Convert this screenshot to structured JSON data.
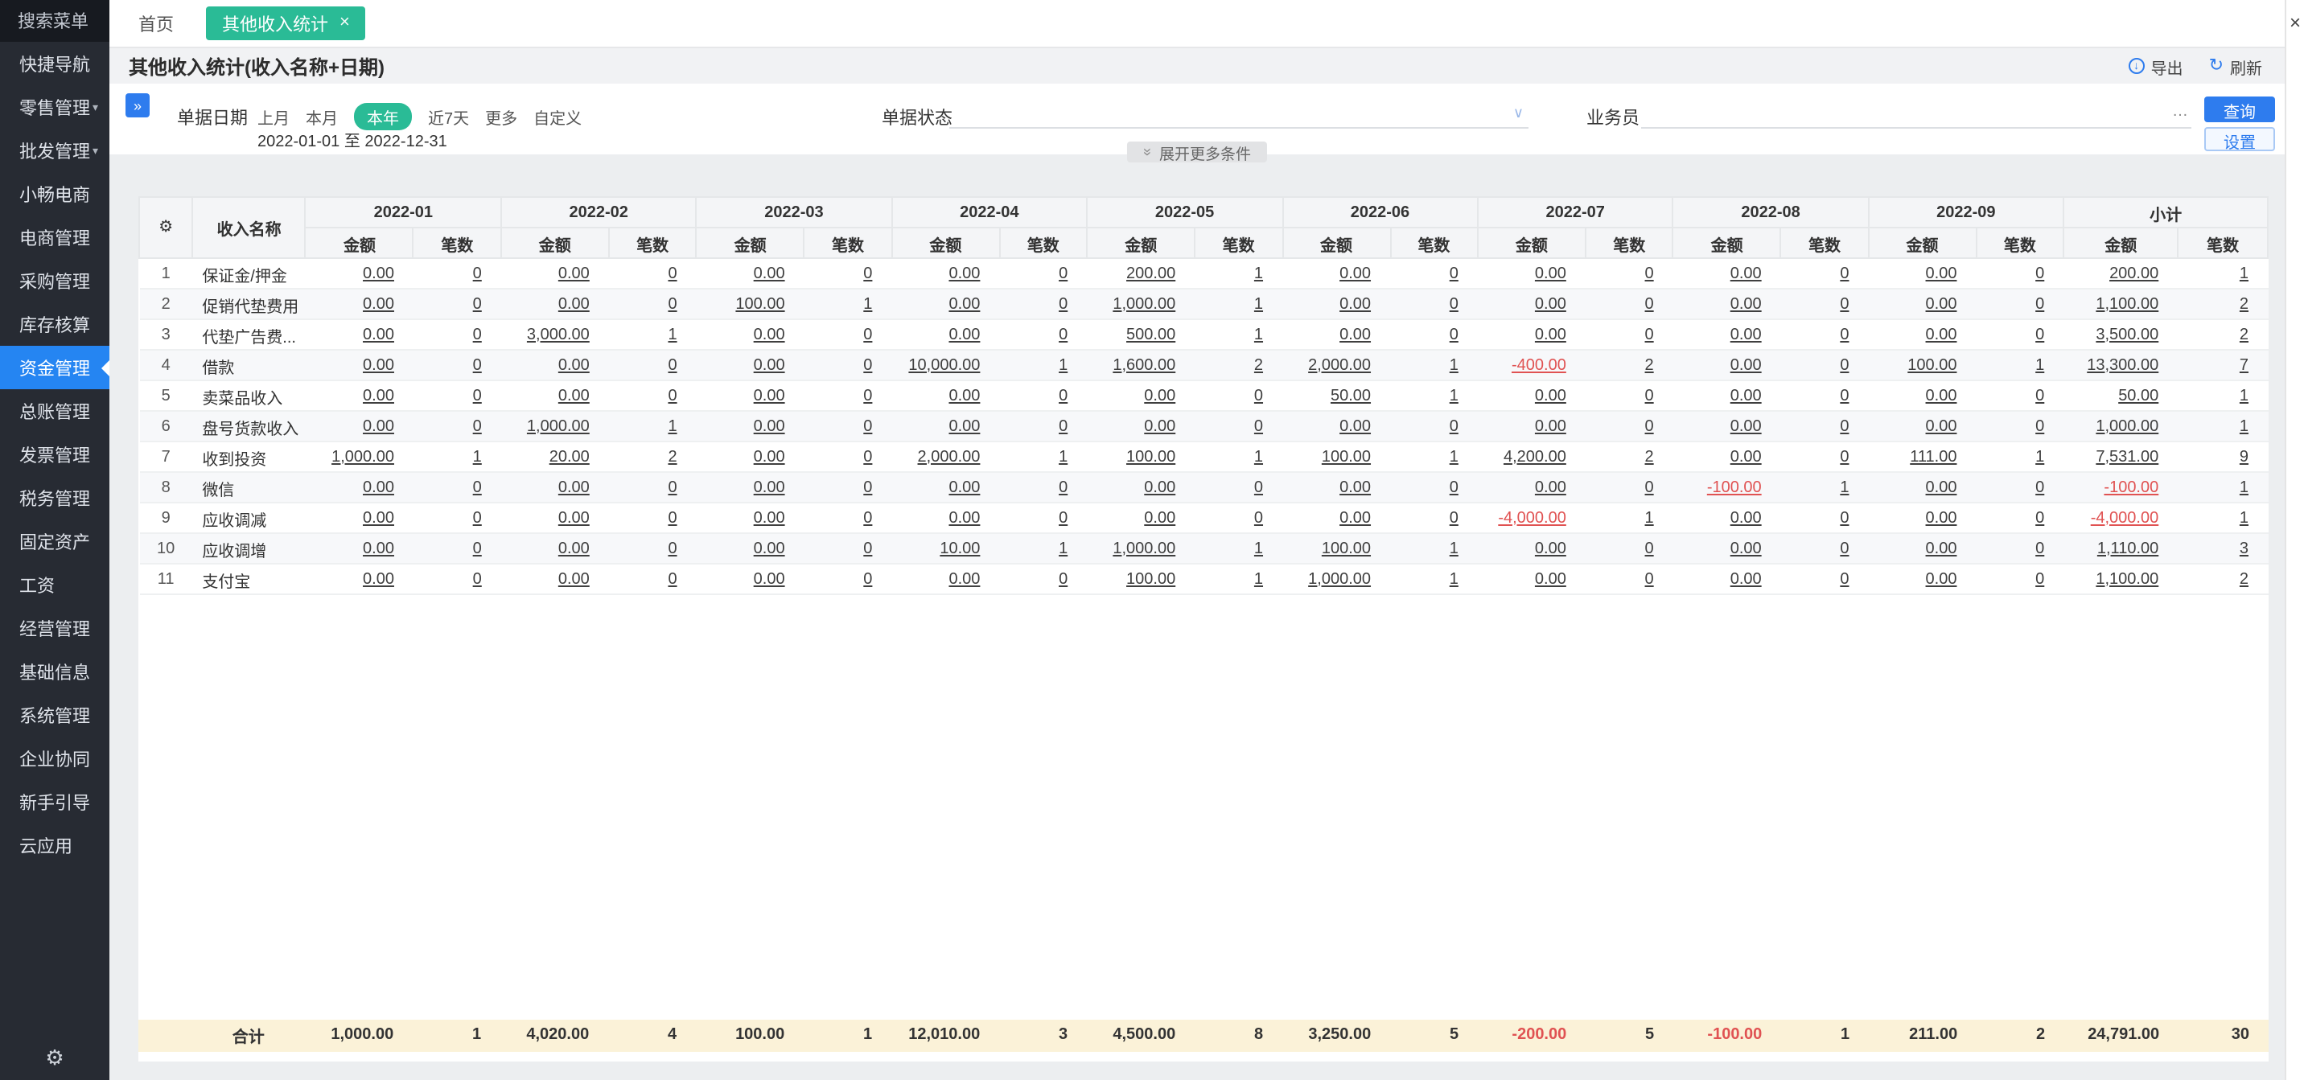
{
  "sidebar": {
    "search_label": "搜索菜单",
    "items": [
      {
        "label": "快捷导航"
      },
      {
        "label": "零售管理",
        "arrow": true
      },
      {
        "label": "批发管理",
        "arrow": true
      },
      {
        "label": "小畅电商"
      },
      {
        "label": "电商管理"
      },
      {
        "label": "采购管理"
      },
      {
        "label": "库存核算"
      },
      {
        "label": "资金管理",
        "active": true
      },
      {
        "label": "总账管理"
      },
      {
        "label": "发票管理"
      },
      {
        "label": "税务管理"
      },
      {
        "label": "固定资产"
      },
      {
        "label": "工资"
      },
      {
        "label": "经营管理"
      },
      {
        "label": "基础信息"
      },
      {
        "label": "系统管理"
      },
      {
        "label": "企业协同"
      },
      {
        "label": "新手引导"
      },
      {
        "label": "云应用"
      }
    ]
  },
  "tabs": {
    "home": "首页",
    "active": "其他收入统计",
    "close": "×"
  },
  "page": {
    "title": "其他收入统计(收入名称+日期)",
    "export_label": "导出",
    "refresh_label": "刷新"
  },
  "filters": {
    "date_label": "单据日期",
    "quick_options": [
      "上月",
      "本月",
      "本年",
      "近7天",
      "更多",
      "自定义"
    ],
    "active_quick": "本年",
    "date_range": "2022-01-01 至 2022-12-31",
    "status_label": "单据状态",
    "salesperson_label": "业务员",
    "query_button": "查询",
    "settings_button": "设置",
    "expand_more": "展开更多条件"
  },
  "colors": {
    "accent_blue": "#2e7cee",
    "accent_green": "#2abb96",
    "negative_red": "#e05252",
    "total_row_bg": "#fbf2d8",
    "sidebar_bg": "#272b33"
  },
  "table": {
    "name_header": "收入名称",
    "amount_header": "金额",
    "count_header": "笔数",
    "subtotal_header": "小计",
    "months": [
      "2022-01",
      "2022-02",
      "2022-03",
      "2022-04",
      "2022-05",
      "2022-06",
      "2022-07",
      "2022-08",
      "2022-09"
    ],
    "rows": [
      {
        "index": "1",
        "name": "保证金/押金",
        "cells": [
          [
            "0.00",
            "0"
          ],
          [
            "0.00",
            "0"
          ],
          [
            "0.00",
            "0"
          ],
          [
            "0.00",
            "0"
          ],
          [
            "200.00",
            "1"
          ],
          [
            "0.00",
            "0"
          ],
          [
            "0.00",
            "0"
          ],
          [
            "0.00",
            "0"
          ],
          [
            "0.00",
            "0"
          ]
        ],
        "subtotal": [
          "200.00",
          "1"
        ]
      },
      {
        "index": "2",
        "name": "促销代垫费用",
        "cells": [
          [
            "0.00",
            "0"
          ],
          [
            "0.00",
            "0"
          ],
          [
            "100.00",
            "1"
          ],
          [
            "0.00",
            "0"
          ],
          [
            "1,000.00",
            "1"
          ],
          [
            "0.00",
            "0"
          ],
          [
            "0.00",
            "0"
          ],
          [
            "0.00",
            "0"
          ],
          [
            "0.00",
            "0"
          ]
        ],
        "subtotal": [
          "1,100.00",
          "2"
        ]
      },
      {
        "index": "3",
        "name": "代垫广告费...",
        "cells": [
          [
            "0.00",
            "0"
          ],
          [
            "3,000.00",
            "1"
          ],
          [
            "0.00",
            "0"
          ],
          [
            "0.00",
            "0"
          ],
          [
            "500.00",
            "1"
          ],
          [
            "0.00",
            "0"
          ],
          [
            "0.00",
            "0"
          ],
          [
            "0.00",
            "0"
          ],
          [
            "0.00",
            "0"
          ]
        ],
        "subtotal": [
          "3,500.00",
          "2"
        ]
      },
      {
        "index": "4",
        "name": "借款",
        "cells": [
          [
            "0.00",
            "0"
          ],
          [
            "0.00",
            "0"
          ],
          [
            "0.00",
            "0"
          ],
          [
            "10,000.00",
            "1"
          ],
          [
            "1,600.00",
            "2"
          ],
          [
            "2,000.00",
            "1"
          ],
          [
            "-400.00",
            "2"
          ],
          [
            "0.00",
            "0"
          ],
          [
            "100.00",
            "1"
          ]
        ],
        "subtotal": [
          "13,300.00",
          "7"
        ]
      },
      {
        "index": "5",
        "name": "卖菜品收入",
        "cells": [
          [
            "0.00",
            "0"
          ],
          [
            "0.00",
            "0"
          ],
          [
            "0.00",
            "0"
          ],
          [
            "0.00",
            "0"
          ],
          [
            "0.00",
            "0"
          ],
          [
            "50.00",
            "1"
          ],
          [
            "0.00",
            "0"
          ],
          [
            "0.00",
            "0"
          ],
          [
            "0.00",
            "0"
          ]
        ],
        "subtotal": [
          "50.00",
          "1"
        ]
      },
      {
        "index": "6",
        "name": "盘号货款收入",
        "cells": [
          [
            "0.00",
            "0"
          ],
          [
            "1,000.00",
            "1"
          ],
          [
            "0.00",
            "0"
          ],
          [
            "0.00",
            "0"
          ],
          [
            "0.00",
            "0"
          ],
          [
            "0.00",
            "0"
          ],
          [
            "0.00",
            "0"
          ],
          [
            "0.00",
            "0"
          ],
          [
            "0.00",
            "0"
          ]
        ],
        "subtotal": [
          "1,000.00",
          "1"
        ]
      },
      {
        "index": "7",
        "name": "收到投资",
        "cells": [
          [
            "1,000.00",
            "1"
          ],
          [
            "20.00",
            "2"
          ],
          [
            "0.00",
            "0"
          ],
          [
            "2,000.00",
            "1"
          ],
          [
            "100.00",
            "1"
          ],
          [
            "100.00",
            "1"
          ],
          [
            "4,200.00",
            "2"
          ],
          [
            "0.00",
            "0"
          ],
          [
            "111.00",
            "1"
          ]
        ],
        "subtotal": [
          "7,531.00",
          "9"
        ]
      },
      {
        "index": "8",
        "name": "微信",
        "cells": [
          [
            "0.00",
            "0"
          ],
          [
            "0.00",
            "0"
          ],
          [
            "0.00",
            "0"
          ],
          [
            "0.00",
            "0"
          ],
          [
            "0.00",
            "0"
          ],
          [
            "0.00",
            "0"
          ],
          [
            "0.00",
            "0"
          ],
          [
            "-100.00",
            "1"
          ],
          [
            "0.00",
            "0"
          ]
        ],
        "subtotal": [
          "-100.00",
          "1"
        ]
      },
      {
        "index": "9",
        "name": "应收调减",
        "cells": [
          [
            "0.00",
            "0"
          ],
          [
            "0.00",
            "0"
          ],
          [
            "0.00",
            "0"
          ],
          [
            "0.00",
            "0"
          ],
          [
            "0.00",
            "0"
          ],
          [
            "0.00",
            "0"
          ],
          [
            "-4,000.00",
            "1"
          ],
          [
            "0.00",
            "0"
          ],
          [
            "0.00",
            "0"
          ]
        ],
        "subtotal": [
          "-4,000.00",
          "1"
        ]
      },
      {
        "index": "10",
        "name": "应收调增",
        "cells": [
          [
            "0.00",
            "0"
          ],
          [
            "0.00",
            "0"
          ],
          [
            "0.00",
            "0"
          ],
          [
            "10.00",
            "1"
          ],
          [
            "1,000.00",
            "1"
          ],
          [
            "100.00",
            "1"
          ],
          [
            "0.00",
            "0"
          ],
          [
            "0.00",
            "0"
          ],
          [
            "0.00",
            "0"
          ]
        ],
        "subtotal": [
          "1,110.00",
          "3"
        ]
      },
      {
        "index": "11",
        "name": "支付宝",
        "cells": [
          [
            "0.00",
            "0"
          ],
          [
            "0.00",
            "0"
          ],
          [
            "0.00",
            "0"
          ],
          [
            "0.00",
            "0"
          ],
          [
            "100.00",
            "1"
          ],
          [
            "1,000.00",
            "1"
          ],
          [
            "0.00",
            "0"
          ],
          [
            "0.00",
            "0"
          ],
          [
            "0.00",
            "0"
          ]
        ],
        "subtotal": [
          "1,100.00",
          "2"
        ]
      }
    ],
    "footer": {
      "label": "合计",
      "cells": [
        [
          "1,000.00",
          "1"
        ],
        [
          "4,020.00",
          "4"
        ],
        [
          "100.00",
          "1"
        ],
        [
          "12,010.00",
          "3"
        ],
        [
          "4,500.00",
          "8"
        ],
        [
          "3,250.00",
          "5"
        ],
        [
          "-200.00",
          "5"
        ],
        [
          "-100.00",
          "1"
        ],
        [
          "211.00",
          "2"
        ]
      ],
      "subtotal": [
        "24,791.00",
        "30"
      ]
    }
  }
}
